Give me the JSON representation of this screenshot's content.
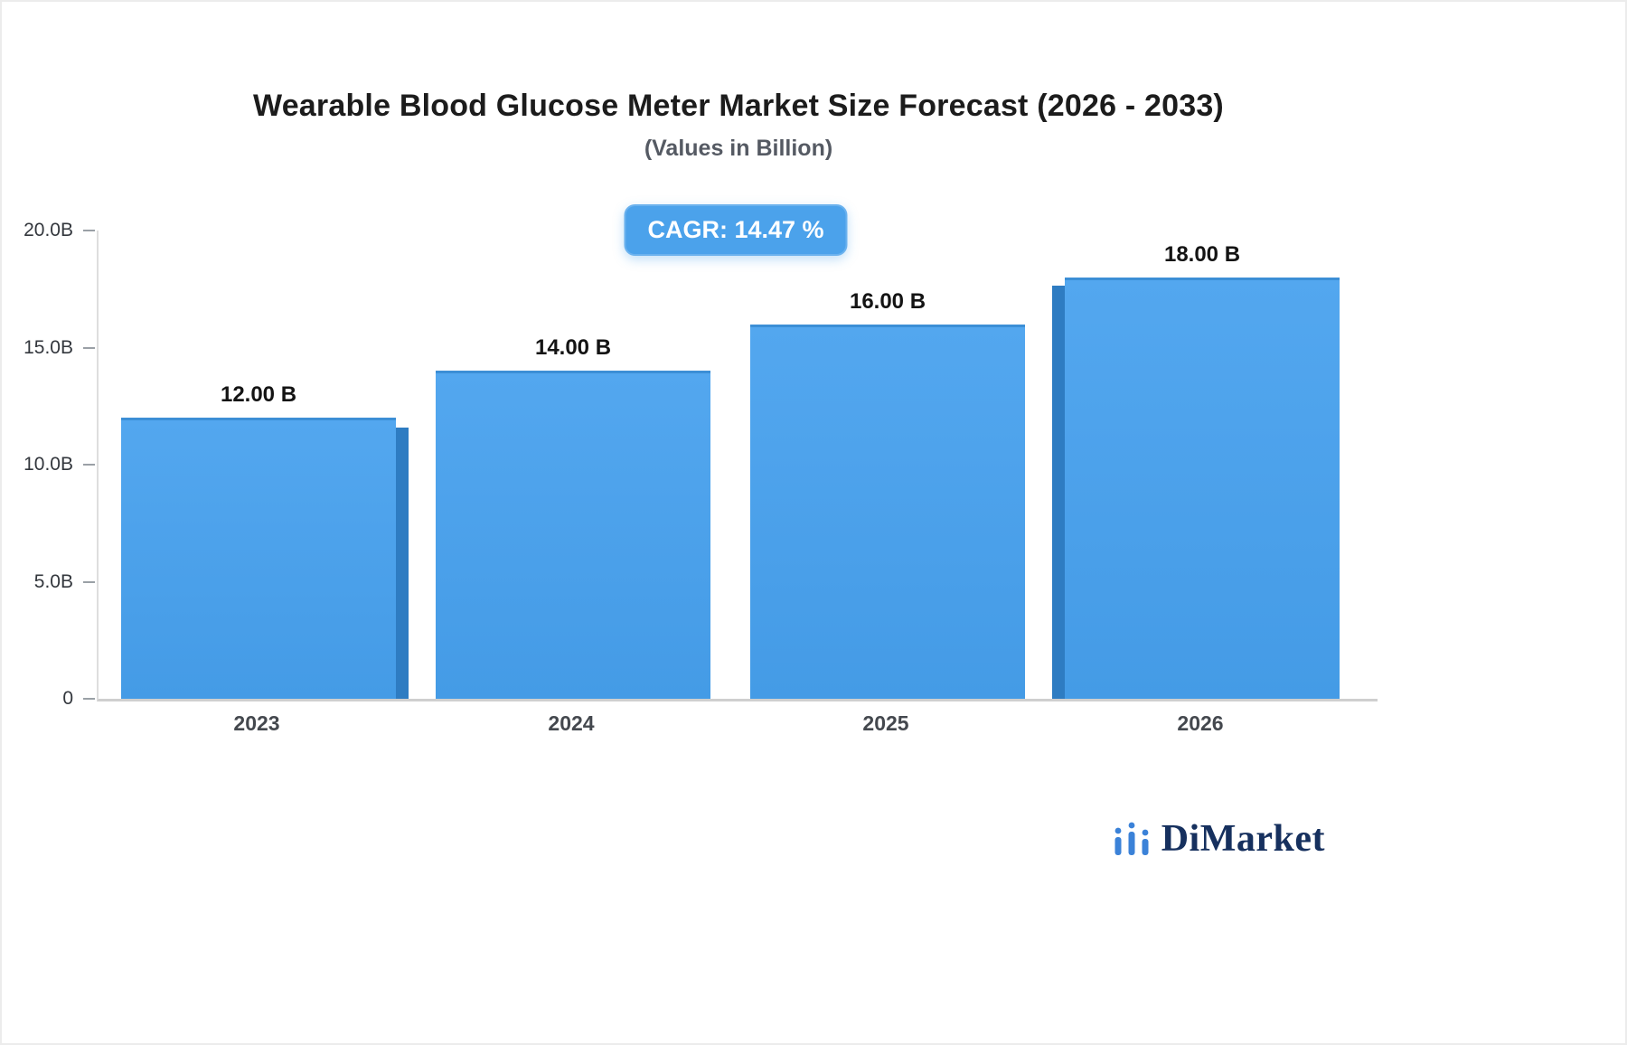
{
  "chart_data": {
    "type": "bar",
    "title": "Wearable Blood Glucose Meter Market Size Forecast (2026 - 2033)",
    "subtitle": "(Values in Billion)",
    "cagr_label": "CAGR: 14.47 %",
    "categories": [
      "2023",
      "2024",
      "2025",
      "2026"
    ],
    "values": [
      12,
      14,
      16,
      18
    ],
    "value_labels": [
      "12.00 B",
      "14.00 B",
      "16.00 B",
      "18.00 B"
    ],
    "ylabel": "",
    "xlabel": "",
    "ylim": [
      0,
      20
    ],
    "yticks": [
      "20.0B",
      "15.0B",
      "10.0B",
      "5.0B",
      "0"
    ],
    "grid": false,
    "legend": "none",
    "colors": {
      "bar": "#4BA2EB",
      "bar_side_shadow": "#2E7CC2",
      "badge_background": "#4BA2EB",
      "badge_text": "#FFFFFF"
    }
  },
  "branding": {
    "name": "DiMarket",
    "icon": "bar-chart-logo-icon",
    "color": "#16305e",
    "icon_color": "#3b82d8"
  }
}
